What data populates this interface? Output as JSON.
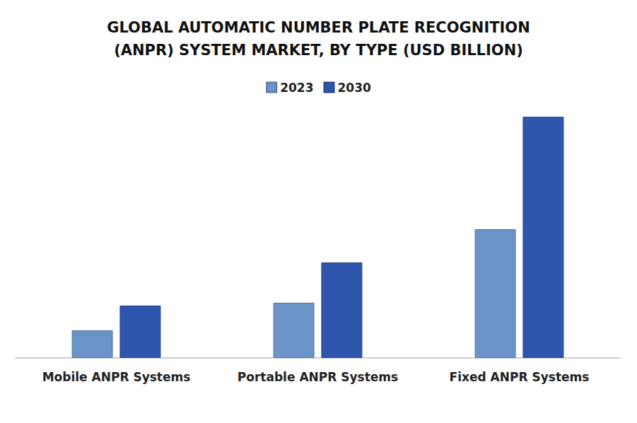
{
  "chart_data": {
    "type": "bar",
    "title": "GLOBAL AUTOMATIC NUMBER PLATE RECOGNITION\n(ANPR) SYSTEM MARKET, BY TYPE (USD BILLION)",
    "categories": [
      "Mobile ANPR Systems",
      "Portable ANPR Systems",
      "Fixed ANPR Systems"
    ],
    "series": [
      {
        "name": "2023",
        "color": "#6a93c8",
        "values": [
          0.39,
          0.78,
          1.82
        ]
      },
      {
        "name": "2030",
        "color": "#2f56ad",
        "values": [
          0.74,
          1.35,
          3.41
        ]
      }
    ],
    "ylim": [
      0,
      3.5
    ],
    "grid": false,
    "legend": "top",
    "tick_labels": "x"
  }
}
